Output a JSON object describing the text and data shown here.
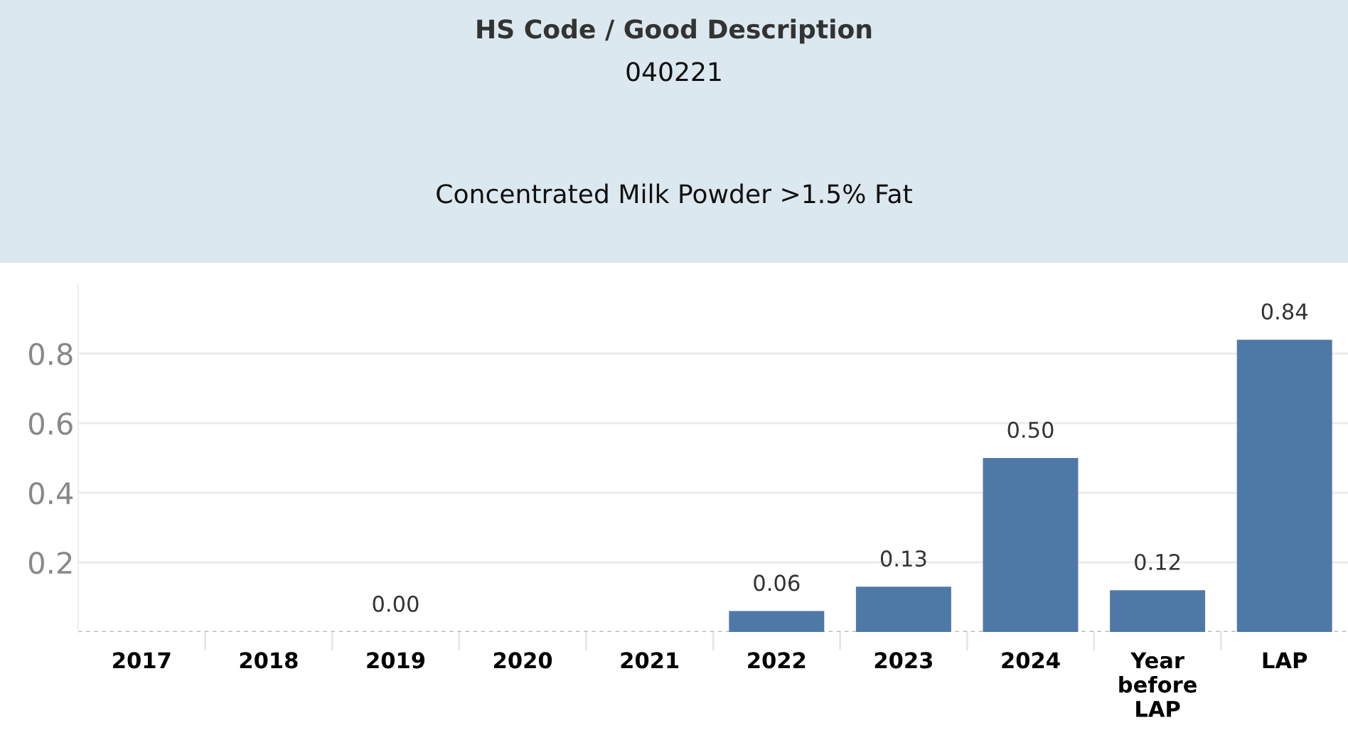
{
  "chart_data": {
    "type": "bar",
    "title": "HS Code / Good Description",
    "subtitle": "040221",
    "annotations": [
      "Concentrated Milk Powder >1.5% Fat"
    ],
    "categories": [
      "2017",
      "2018",
      "2019",
      "2020",
      "2021",
      "2022",
      "2023",
      "2024",
      "Year\nbefore\nLAP",
      "LAP"
    ],
    "values": [
      null,
      null,
      0.0,
      null,
      null,
      0.06,
      0.13,
      0.5,
      0.12,
      0.84
    ],
    "value_labels": [
      null,
      null,
      "0.00",
      null,
      null,
      "0.06",
      "0.13",
      "0.50",
      "0.12",
      "0.84"
    ],
    "color": "#4e79a7",
    "ylim": [
      0,
      1.0
    ],
    "yticks": [
      0.2,
      0.4,
      0.6,
      0.8
    ],
    "grid": "y",
    "legend": false
  }
}
